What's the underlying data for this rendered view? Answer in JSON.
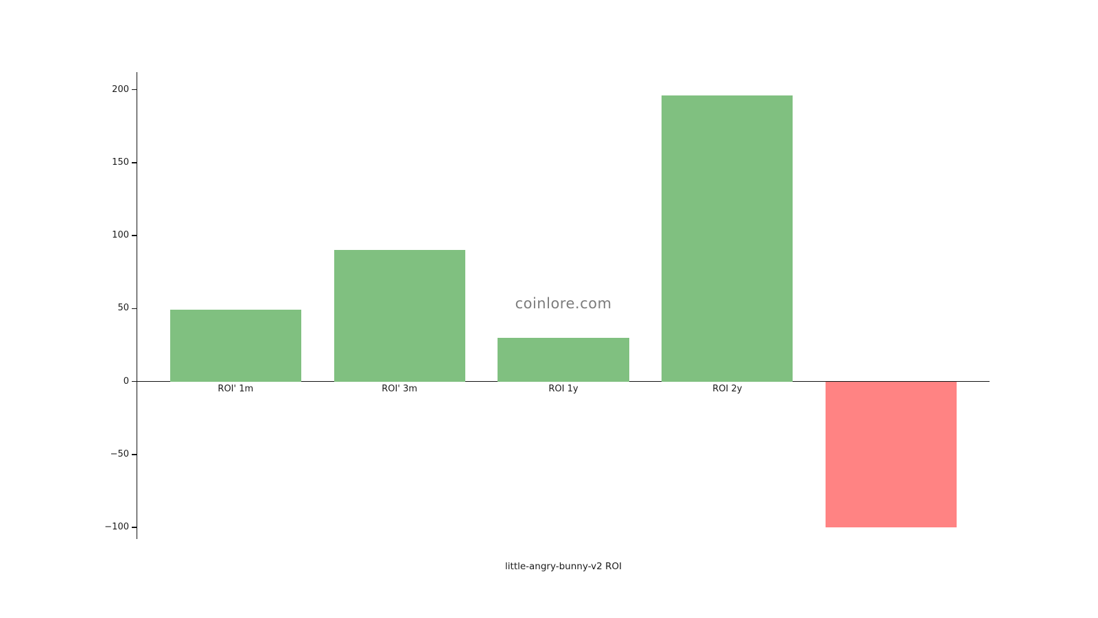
{
  "chart_data": {
    "type": "bar",
    "categories": [
      "ROI' 1m",
      "ROI' 3m",
      "ROI 1y",
      "ROI 2y",
      ""
    ],
    "values": [
      49,
      90,
      30,
      196,
      -100
    ],
    "bar_colors": [
      "#80c080",
      "#80c080",
      "#80c080",
      "#80c080",
      "#ff8383"
    ],
    "title": "little-angry-bunny-v2 ROI",
    "watermark": "coinlore.com",
    "xlabel": "",
    "ylabel": "",
    "ylim": [
      -108,
      212
    ],
    "yticks": [
      200,
      150,
      100,
      50,
      0,
      -50,
      -100
    ],
    "grid": false,
    "legend": "none"
  },
  "colors": {
    "positive_bar": "#80c080",
    "negative_bar": "#ff8383",
    "axis": "#111111",
    "tick_text": "#1a1a1a",
    "watermark_text": "#7c7c7c"
  }
}
